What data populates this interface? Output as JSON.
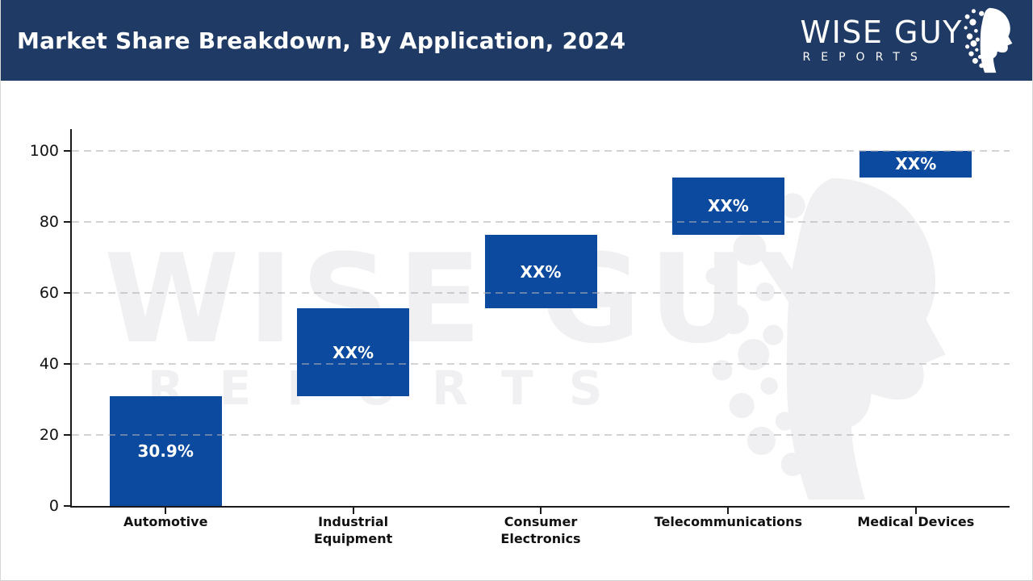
{
  "header": {
    "title": "Market Share Breakdown, By Application, 2024",
    "brand": {
      "name": "WISE GUY",
      "sub": "REPORTS"
    }
  },
  "watermark": {
    "line1": "WISE GUY",
    "line2": "REPORTS"
  },
  "chart_data": {
    "type": "bar",
    "subtype": "waterfall",
    "title": "Market Share Breakdown, By Application, 2024",
    "xlabel": "",
    "ylabel": "",
    "ylim": [
      0,
      106
    ],
    "yticks": [
      0,
      20,
      40,
      60,
      80,
      100
    ],
    "grid": "horizontal dashed",
    "legend": "none",
    "bar_color": "#0b4a9e",
    "value_label_color": "#ffffff",
    "categories": [
      "Automotive",
      "Industrial Equipment",
      "Consumer Electronics",
      "Telecommunications",
      "Medical Devices"
    ],
    "categories_display": [
      "Automotive",
      "Industrial\nEquipment",
      "Consumer\nElectronics",
      "Telecommunications",
      "Medical Devices"
    ],
    "segments": [
      {
        "category": "Automotive",
        "start": 0,
        "end": 30.9,
        "size": 30.9,
        "label": "30.9%"
      },
      {
        "category": "Industrial Equipment",
        "start": 30.9,
        "end": 55.6,
        "size": 24.7,
        "label": "XX%"
      },
      {
        "category": "Consumer Electronics",
        "start": 55.6,
        "end": 76.3,
        "size": 20.7,
        "label": "XX%"
      },
      {
        "category": "Telecommunications",
        "start": 76.3,
        "end": 92.6,
        "size": 16.3,
        "label": "XX%"
      },
      {
        "category": "Medical Devices",
        "start": 92.6,
        "end": 100,
        "size": 7.4,
        "label": "XX%"
      }
    ]
  },
  "colors": {
    "header_bg": "#203a66",
    "bar": "#0b4a9e",
    "axis": "#1a1a1a",
    "grid": "#d9d9d9",
    "watermark": "#f0f0f2"
  }
}
